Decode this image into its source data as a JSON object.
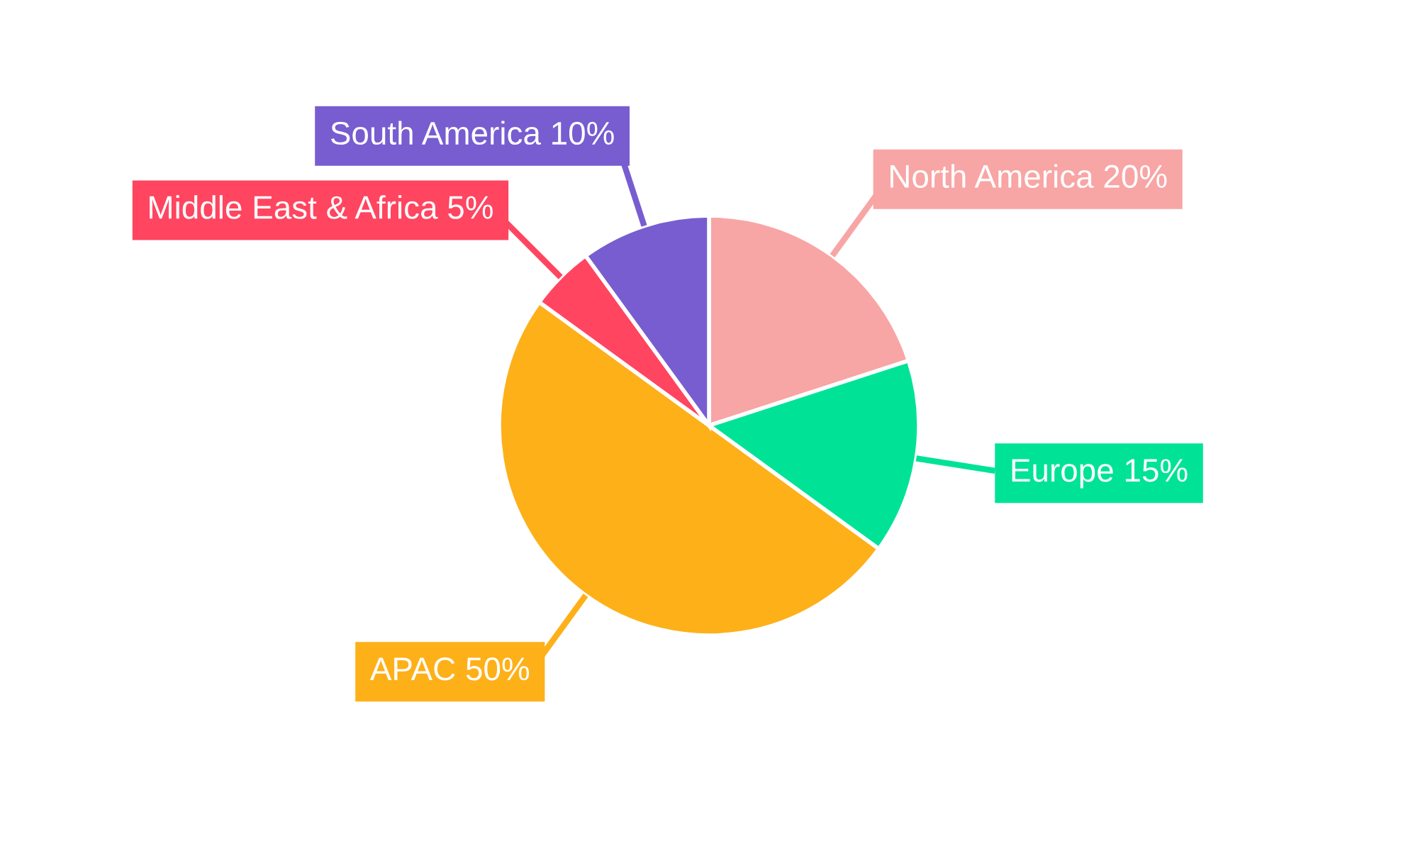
{
  "chart_data": {
    "type": "pie",
    "categories": [
      "North America",
      "Europe",
      "APAC",
      "Middle East & Africa",
      "South America"
    ],
    "values": [
      20,
      15,
      50,
      5,
      10
    ],
    "value_labels": [
      "20%",
      "15%",
      "50%",
      "5%",
      "10%"
    ],
    "colors": [
      "#f8a5a5",
      "#00e396",
      "#feb019",
      "#ff4560",
      "#775dd0"
    ],
    "legend": false
  }
}
